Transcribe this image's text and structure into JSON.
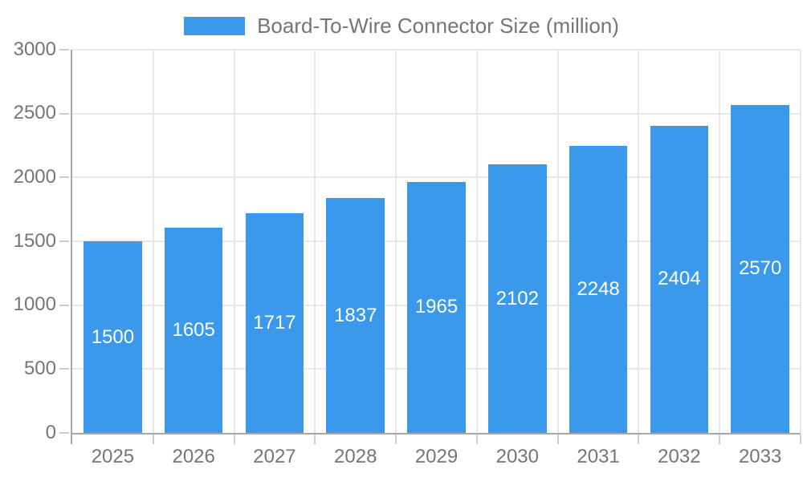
{
  "chart_data": {
    "type": "bar",
    "title": "Board-To-Wire Connector Size (million)",
    "categories": [
      "2025",
      "2026",
      "2027",
      "2028",
      "2029",
      "2030",
      "2031",
      "2032",
      "2033"
    ],
    "values": [
      1500,
      1605,
      1717,
      1837,
      1965,
      2102,
      2248,
      2404,
      2570
    ],
    "xlabel": "",
    "ylabel": "",
    "ylim": [
      0,
      3000
    ],
    "yticks": [
      0,
      500,
      1000,
      1500,
      2000,
      2500,
      3000
    ],
    "grid": true,
    "legend_position": "top-center",
    "bar_value_labels": "centered-white",
    "colors": {
      "bar": "#3b99ec",
      "axis_line": "#a6a6a6",
      "gridline": "#e8e8e8",
      "tick": "#c9c9c9",
      "axis_label": "#757575",
      "bar_label": "#ffffff",
      "background": "#ffffff"
    }
  }
}
